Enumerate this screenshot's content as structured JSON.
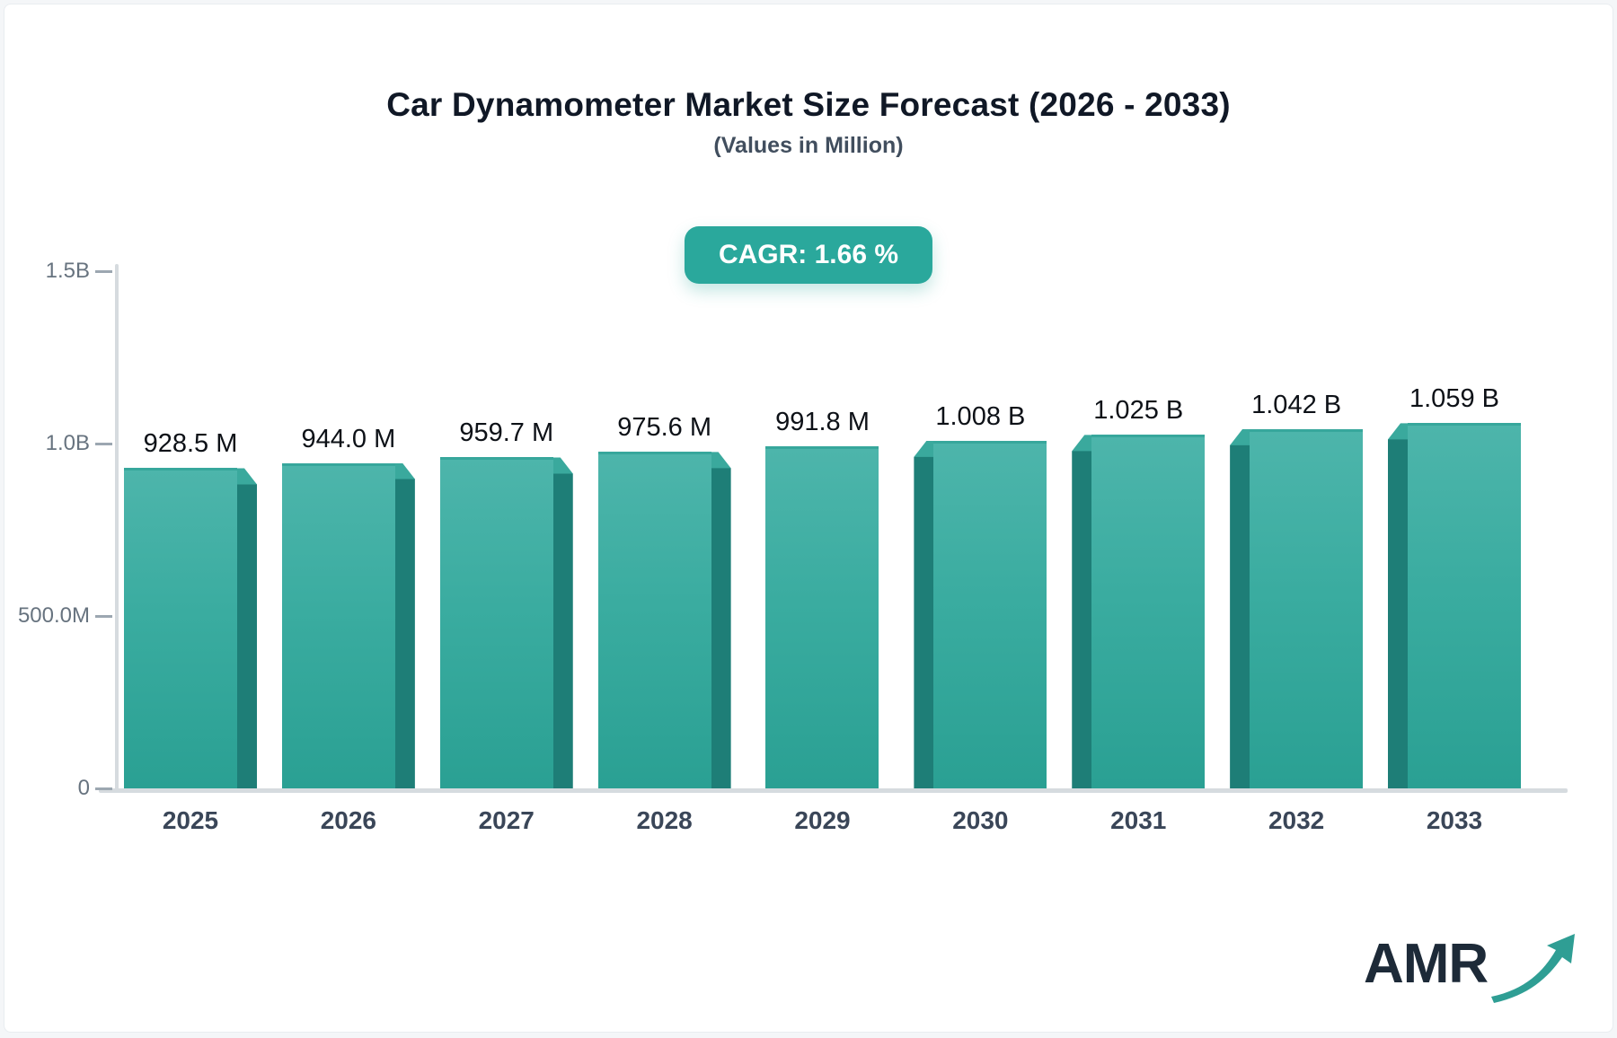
{
  "page": {
    "background": "#f4f6f8",
    "card_background": "#ffffff"
  },
  "header": {
    "title": "Car Dynamometer Market Size Forecast (2026 - 2033)",
    "subtitle": "(Values in Million)"
  },
  "badge": {
    "label": "CAGR: 1.66 %",
    "background": "#2aa89c",
    "text_color": "#ffffff"
  },
  "chart_data": {
    "type": "bar",
    "title": "Car Dynamometer Market Size Forecast (2026 - 2033)",
    "subtitle": "(Values in Million)",
    "categories": [
      "2025",
      "2026",
      "2027",
      "2028",
      "2029",
      "2030",
      "2031",
      "2032",
      "2033"
    ],
    "values": [
      928.5,
      944.0,
      959.7,
      975.6,
      991.8,
      1008,
      1025,
      1042,
      1059
    ],
    "value_labels": [
      "928.5 M",
      "944.0 M",
      "959.7 M",
      "975.6 M",
      "991.8 M",
      "1.008 B",
      "1.025 B",
      "1.042 B",
      "1.059 B"
    ],
    "ylim": [
      0,
      1500
    ],
    "yticks": [
      {
        "value": 0,
        "label": "0"
      },
      {
        "value": 500,
        "label": "500.0M"
      },
      {
        "value": 1000,
        "label": "1.0B"
      },
      {
        "value": 1500,
        "label": "1.5B"
      }
    ],
    "grid": false,
    "legend": false,
    "bar_colors": {
      "face_top": "#4db5ab",
      "face_bottom": "#2aa093",
      "side": "#1e7e77",
      "chamfer": "#3aa99d"
    },
    "axis_color": "#d6dbdf",
    "tick_text_color": "#67737f",
    "x_label_color": "#3a4658",
    "value_label_color": "#0d1117"
  },
  "logo": {
    "text": "AMR",
    "text_color": "#1d2a38",
    "arrow_color": "#2f9e94"
  }
}
